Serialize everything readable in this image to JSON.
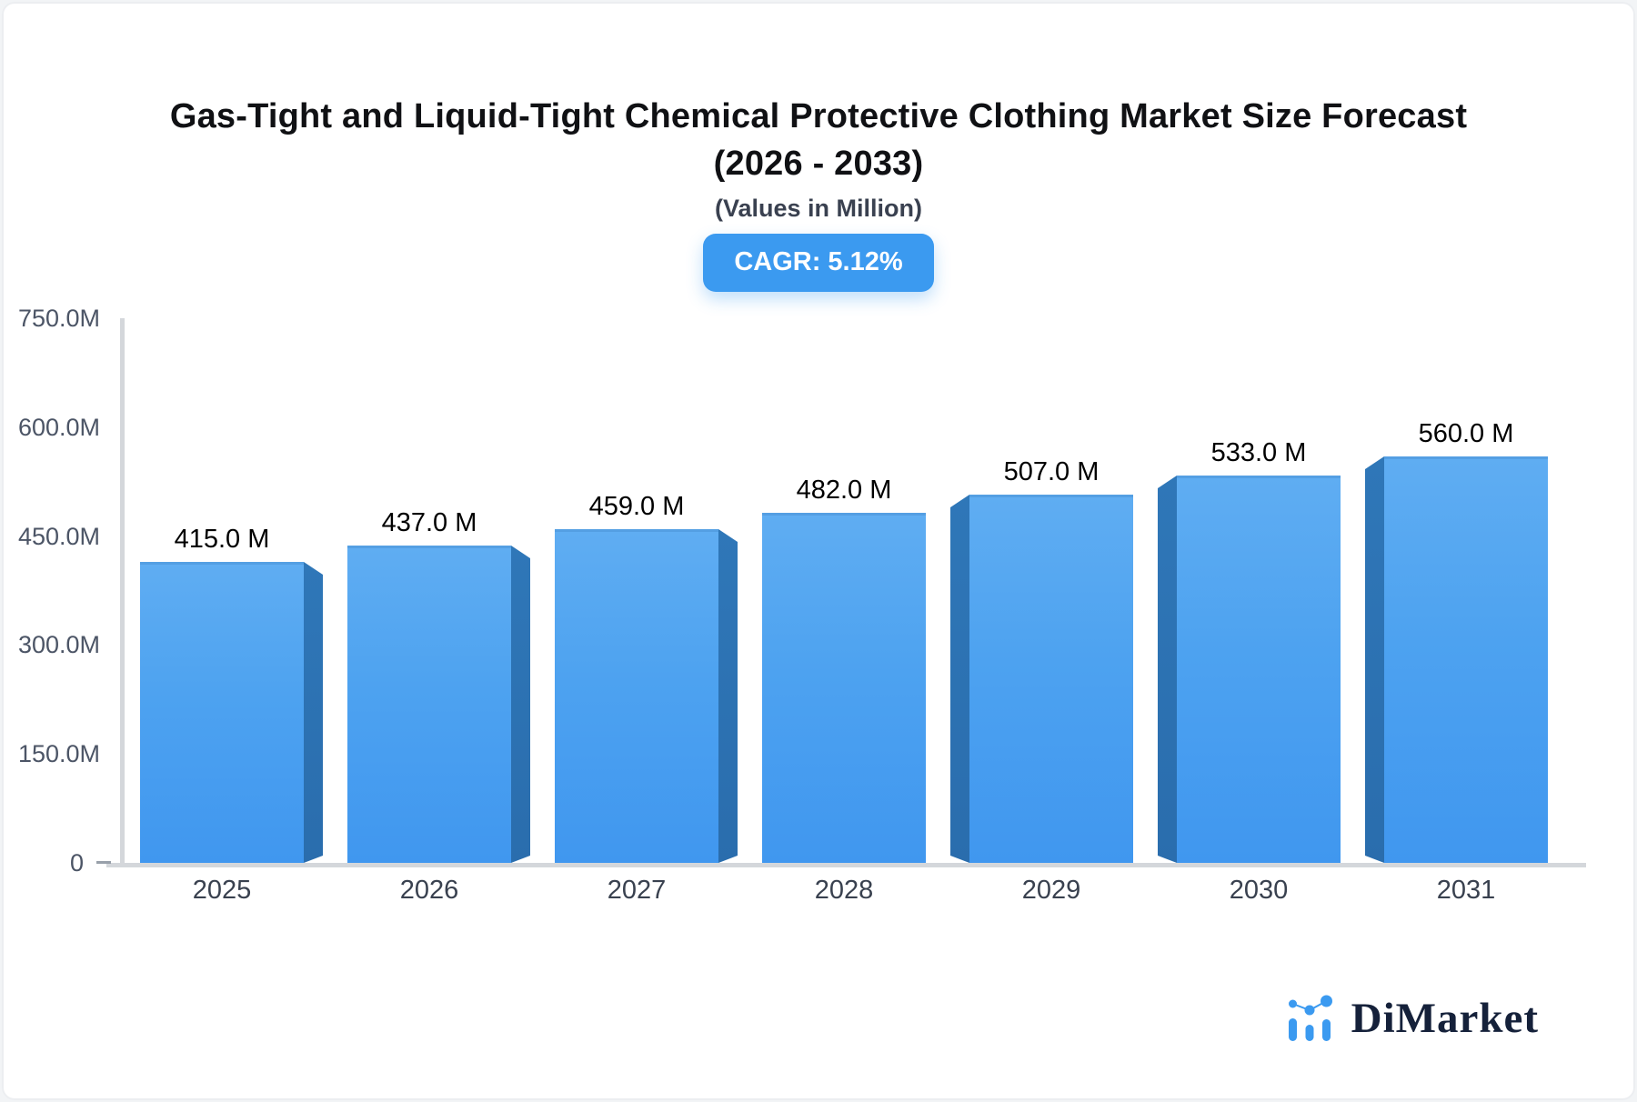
{
  "header": {
    "title_line1": "Gas-Tight and Liquid-Tight Chemical Protective Clothing Market Size Forecast",
    "title_line2": "(2026 - 2033)",
    "subtitle": "(Values in Million)",
    "cagr_badge": "CAGR: 5.12%"
  },
  "chart_data": {
    "type": "bar",
    "title": "Gas-Tight and Liquid-Tight Chemical Protective Clothing Market Size Forecast (2026 - 2033)",
    "subtitle": "(Values in Million)",
    "cagr": "5.12%",
    "unit": "Million",
    "categories": [
      "2025",
      "2026",
      "2027",
      "2028",
      "2029",
      "2030",
      "2031"
    ],
    "values": [
      415,
      437,
      459,
      482,
      507,
      533,
      560
    ],
    "data_labels": [
      "415.0 M",
      "437.0 M",
      "459.0 M",
      "482.0 M",
      "507.0 M",
      "533.0 M",
      "560.0 M"
    ],
    "xlabel": "",
    "ylabel": "",
    "ylim": [
      0,
      750
    ],
    "yticks": [
      {
        "value": 0,
        "label": "0"
      },
      {
        "value": 150,
        "label": "150.0M"
      },
      {
        "value": 300,
        "label": "300.0M"
      },
      {
        "value": 450,
        "label": "450.0M"
      },
      {
        "value": 600,
        "label": "600.0M"
      },
      {
        "value": 750,
        "label": "750.0M"
      }
    ],
    "grid": false,
    "legend": null,
    "style": "3d-perspective-bars-facing-center"
  },
  "logo": {
    "text": "DiMarket",
    "icon": "bar-chart-trend-icon"
  },
  "colors": {
    "accent": "#3b9af0",
    "bar_face_top": "#5fadf2",
    "bar_face_mid": "#4da2f0",
    "bar_face_bottom": "#4097ef",
    "bar_top_edge": "#549fe3",
    "bar_side_top": "#2f77b8",
    "bar_side_bottom": "#2a6dad",
    "axis": "#d4d7db",
    "tick_text": "#4c5566",
    "category_text": "#39414f",
    "value_text": "#000000",
    "title_text": "#101114",
    "subtitle_text": "#3a4150",
    "logo_text": "#15213a"
  }
}
